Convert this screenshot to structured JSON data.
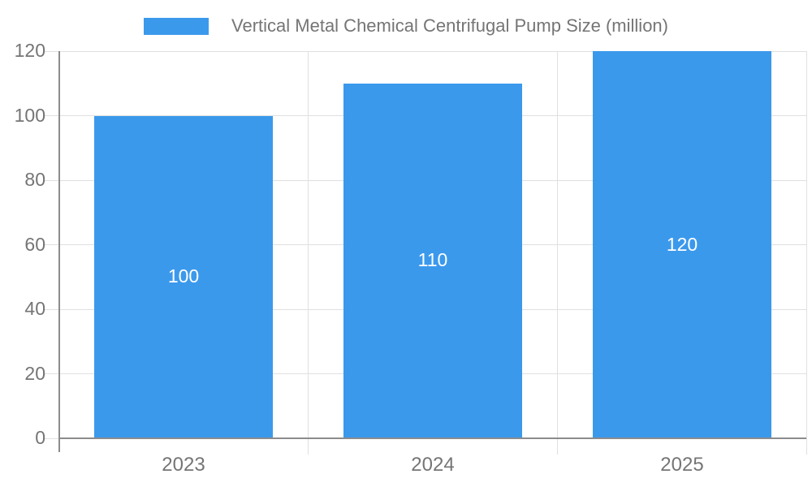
{
  "legend": {
    "label": "Vertical Metal Chemical Centrifugal Pump Size (million)"
  },
  "chart_data": {
    "type": "bar",
    "title": "Vertical Metal Chemical Centrifugal Pump Size (million)",
    "categories": [
      "2023",
      "2024",
      "2025"
    ],
    "values": [
      100,
      110,
      120
    ],
    "value_labels": [
      "100",
      "110",
      "120"
    ],
    "xlabel": "",
    "ylabel": "",
    "ylim": [
      0,
      120
    ],
    "ytick_step": 20,
    "yticks": [
      0,
      20,
      40,
      60,
      80,
      100,
      120
    ],
    "grid": true,
    "legend_position": "top"
  },
  "colors": {
    "bar": "#3b99ec",
    "value_label": "#ffffff",
    "axis_line": "#8c8c8c",
    "grid_line": "#e0e0e0",
    "axis_text": "#757575",
    "background": "#ffffff"
  }
}
